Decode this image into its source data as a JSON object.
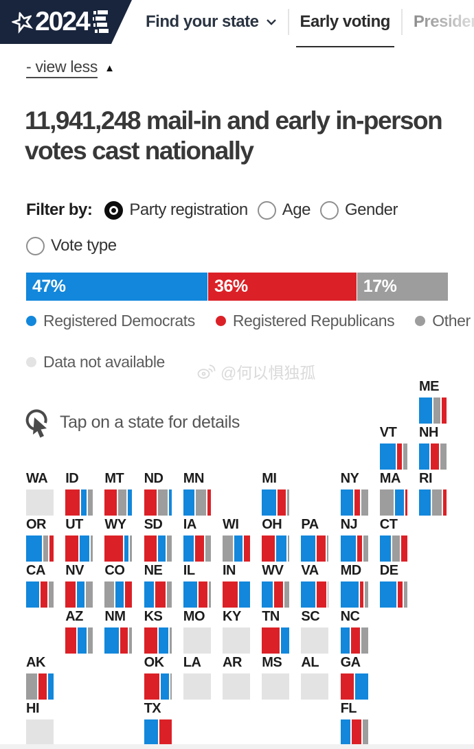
{
  "colors": {
    "dem": "#1287db",
    "rep": "#db2127",
    "oth": "#9d9d9d",
    "na": "#e3e3e3",
    "navy": "#19253c"
  },
  "header": {
    "logo_year": "2024",
    "nav": {
      "items": [
        {
          "label": "Find your state",
          "active": false
        },
        {
          "label": "Early voting",
          "active": true
        },
        {
          "label": "Presiden",
          "active": false
        }
      ]
    }
  },
  "view_less": {
    "label": "- view less",
    "arrow": "▲"
  },
  "headline": "11,941,248 mail-in and early in-person votes cast nationally",
  "filter": {
    "label": "Filter by:",
    "options": [
      {
        "label": "Party registration",
        "selected": true
      },
      {
        "label": "Age",
        "selected": false
      },
      {
        "label": "Gender",
        "selected": false
      },
      {
        "label": "Vote type",
        "selected": false
      }
    ]
  },
  "legend": {
    "items": [
      {
        "label": "Registered Democrats",
        "key": "dem"
      },
      {
        "label": "Registered Republicans",
        "key": "rep"
      },
      {
        "label": "Other",
        "key": "oth"
      },
      {
        "label": "Data not available",
        "key": "na"
      }
    ]
  },
  "watermark": "@何以惧独孤",
  "tap_hint": "Tap on a state for details",
  "chart_data": [
    {
      "type": "bar",
      "layout": "horizontal-stacked",
      "title": "11,941,248 mail-in and early in-person votes cast nationally",
      "categories": [
        "Registered Democrats",
        "Registered Republicans",
        "Other"
      ],
      "values": [
        47,
        36,
        17
      ],
      "unit": "%",
      "labels": [
        "47%",
        "36%",
        "17%"
      ],
      "color_keys": [
        "dem",
        "rep",
        "oth"
      ]
    },
    {
      "type": "cartogram-bar",
      "description": "State tile grid; each tile is a mini bar chart of early-vote share by party registration (widths are relative shares). 'na' = data not available.",
      "states": [
        {
          "label": "ME",
          "col": 11,
          "row": 1,
          "bars": [
            [
              "dem",
              52
            ],
            [
              "oth",
              29
            ],
            [
              "rep",
              19
            ]
          ]
        },
        {
          "label": "VT",
          "col": 10,
          "row": 2,
          "bars": [
            [
              "dem",
              64
            ],
            [
              "rep",
              21
            ],
            [
              "oth",
              15
            ]
          ]
        },
        {
          "label": "NH",
          "col": 11,
          "row": 2,
          "bars": [
            [
              "dem",
              43
            ],
            [
              "rep",
              31
            ],
            [
              "oth",
              26
            ]
          ]
        },
        {
          "label": "WA",
          "col": 1,
          "row": 3,
          "bars": [
            [
              "na",
              100
            ]
          ]
        },
        {
          "label": "ID",
          "col": 2,
          "row": 3,
          "bars": [
            [
              "rep",
              58
            ],
            [
              "dem",
              21
            ],
            [
              "oth",
              21
            ]
          ]
        },
        {
          "label": "MT",
          "col": 3,
          "row": 3,
          "bars": [
            [
              "rep",
              49
            ],
            [
              "oth",
              32
            ],
            [
              "dem",
              19
            ]
          ]
        },
        {
          "label": "ND",
          "col": 4,
          "row": 3,
          "bars": [
            [
              "rep",
              50
            ],
            [
              "oth",
              39
            ],
            [
              "dem",
              11
            ]
          ]
        },
        {
          "label": "MN",
          "col": 5,
          "row": 3,
          "bars": [
            [
              "dem",
              46
            ],
            [
              "oth",
              40
            ],
            [
              "rep",
              14
            ]
          ]
        },
        {
          "label": "MI",
          "col": 7,
          "row": 3,
          "bars": [
            [
              "dem",
              58
            ],
            [
              "rep",
              32
            ],
            [
              "oth",
              10
            ]
          ]
        },
        {
          "label": "NY",
          "col": 9,
          "row": 3,
          "bars": [
            [
              "dem",
              50
            ],
            [
              "rep",
              22
            ],
            [
              "oth",
              28
            ]
          ]
        },
        {
          "label": "MA",
          "col": 10,
          "row": 3,
          "bars": [
            [
              "oth",
              55
            ],
            [
              "dem",
              37
            ],
            [
              "rep",
              8
            ]
          ]
        },
        {
          "label": "RI",
          "col": 11,
          "row": 3,
          "bars": [
            [
              "dem",
              48
            ],
            [
              "oth",
              38
            ],
            [
              "rep",
              14
            ]
          ]
        },
        {
          "label": "OR",
          "col": 1,
          "row": 4,
          "bars": [
            [
              "dem",
              63
            ],
            [
              "oth",
              19
            ],
            [
              "rep",
              18
            ]
          ]
        },
        {
          "label": "UT",
          "col": 2,
          "row": 4,
          "bars": [
            [
              "rep",
              53
            ],
            [
              "dem",
              37
            ],
            [
              "oth",
              10
            ]
          ]
        },
        {
          "label": "WY",
          "col": 3,
          "row": 4,
          "bars": [
            [
              "rep",
              73
            ],
            [
              "dem",
              17
            ],
            [
              "oth",
              10
            ]
          ]
        },
        {
          "label": "SD",
          "col": 4,
          "row": 4,
          "bars": [
            [
              "rep",
              52
            ],
            [
              "dem",
              29
            ],
            [
              "oth",
              19
            ]
          ]
        },
        {
          "label": "IA",
          "col": 5,
          "row": 4,
          "bars": [
            [
              "dem",
              42
            ],
            [
              "rep",
              37
            ],
            [
              "oth",
              21
            ]
          ]
        },
        {
          "label": "WI",
          "col": 6,
          "row": 4,
          "bars": [
            [
              "oth",
              42
            ],
            [
              "dem",
              33
            ],
            [
              "rep",
              25
            ]
          ]
        },
        {
          "label": "OH",
          "col": 7,
          "row": 4,
          "bars": [
            [
              "rep",
              52
            ],
            [
              "dem",
              42
            ],
            [
              "oth",
              6
            ]
          ]
        },
        {
          "label": "PA",
          "col": 8,
          "row": 4,
          "bars": [
            [
              "dem",
              58
            ],
            [
              "rep",
              35
            ],
            [
              "oth",
              7
            ]
          ]
        },
        {
          "label": "NJ",
          "col": 9,
          "row": 4,
          "bars": [
            [
              "dem",
              62
            ],
            [
              "rep",
              19
            ],
            [
              "oth",
              19
            ]
          ]
        },
        {
          "label": "CT",
          "col": 10,
          "row": 4,
          "bars": [
            [
              "dem",
              44
            ],
            [
              "oth",
              32
            ],
            [
              "rep",
              24
            ]
          ]
        },
        {
          "label": "CA",
          "col": 1,
          "row": 5,
          "bars": [
            [
              "dem",
              53
            ],
            [
              "rep",
              27
            ],
            [
              "oth",
              20
            ]
          ]
        },
        {
          "label": "NV",
          "col": 2,
          "row": 5,
          "bars": [
            [
              "rep",
              41
            ],
            [
              "dem",
              30
            ],
            [
              "oth",
              29
            ]
          ]
        },
        {
          "label": "CO",
          "col": 3,
          "row": 5,
          "bars": [
            [
              "oth",
              37
            ],
            [
              "dem",
              35
            ],
            [
              "rep",
              28
            ]
          ]
        },
        {
          "label": "NE",
          "col": 4,
          "row": 5,
          "bars": [
            [
              "dem",
              41
            ],
            [
              "rep",
              41
            ],
            [
              "oth",
              18
            ]
          ]
        },
        {
          "label": "IL",
          "col": 5,
          "row": 5,
          "bars": [
            [
              "dem",
              56
            ],
            [
              "rep",
              37
            ],
            [
              "oth",
              7
            ]
          ]
        },
        {
          "label": "IN",
          "col": 6,
          "row": 5,
          "bars": [
            [
              "rep",
              57
            ],
            [
              "dem",
              43
            ]
          ]
        },
        {
          "label": "WV",
          "col": 7,
          "row": 5,
          "bars": [
            [
              "dem",
              43
            ],
            [
              "rep",
              36
            ],
            [
              "oth",
              21
            ]
          ]
        },
        {
          "label": "VA",
          "col": 8,
          "row": 5,
          "bars": [
            [
              "dem",
              57
            ],
            [
              "rep",
              38
            ],
            [
              "oth",
              5
            ]
          ]
        },
        {
          "label": "MD",
          "col": 9,
          "row": 5,
          "bars": [
            [
              "dem",
              72
            ],
            [
              "rep",
              14
            ],
            [
              "oth",
              14
            ]
          ]
        },
        {
          "label": "DE",
          "col": 10,
          "row": 5,
          "bars": [
            [
              "dem",
              68
            ],
            [
              "rep",
              18
            ],
            [
              "oth",
              14
            ]
          ]
        },
        {
          "label": "AZ",
          "col": 2,
          "row": 6,
          "bars": [
            [
              "rep",
              44
            ],
            [
              "dem",
              37
            ],
            [
              "oth",
              19
            ]
          ]
        },
        {
          "label": "NM",
          "col": 3,
          "row": 6,
          "bars": [
            [
              "dem",
              56
            ],
            [
              "rep",
              32
            ],
            [
              "oth",
              12
            ]
          ]
        },
        {
          "label": "KS",
          "col": 4,
          "row": 6,
          "bars": [
            [
              "rep",
              54
            ],
            [
              "dem",
              38
            ],
            [
              "oth",
              8
            ]
          ]
        },
        {
          "label": "MO",
          "col": 5,
          "row": 6,
          "bars": [
            [
              "na",
              100
            ]
          ]
        },
        {
          "label": "KY",
          "col": 6,
          "row": 6,
          "bars": [
            [
              "na",
              100
            ]
          ]
        },
        {
          "label": "TN",
          "col": 7,
          "row": 6,
          "bars": [
            [
              "rep",
              69
            ],
            [
              "dem",
              31
            ]
          ]
        },
        {
          "label": "SC",
          "col": 8,
          "row": 6,
          "bars": [
            [
              "na",
              100
            ]
          ]
        },
        {
          "label": "NC",
          "col": 9,
          "row": 6,
          "bars": [
            [
              "dem",
              36
            ],
            [
              "rep",
              36
            ],
            [
              "oth",
              28
            ]
          ]
        },
        {
          "label": "AK",
          "col": 1,
          "row": 7,
          "bars": [
            [
              "oth",
              45
            ],
            [
              "rep",
              32
            ],
            [
              "dem",
              23
            ]
          ]
        },
        {
          "label": "OK",
          "col": 4,
          "row": 7,
          "bars": [
            [
              "rep",
              61
            ],
            [
              "dem",
              35
            ],
            [
              "oth",
              4
            ]
          ]
        },
        {
          "label": "LA",
          "col": 5,
          "row": 7,
          "bars": [
            [
              "na",
              100
            ]
          ]
        },
        {
          "label": "AR",
          "col": 6,
          "row": 7,
          "bars": [
            [
              "na",
              100
            ]
          ]
        },
        {
          "label": "MS",
          "col": 7,
          "row": 7,
          "bars": [
            [
              "na",
              100
            ]
          ]
        },
        {
          "label": "AL",
          "col": 8,
          "row": 7,
          "bars": [
            [
              "na",
              100
            ]
          ]
        },
        {
          "label": "GA",
          "col": 9,
          "row": 7,
          "bars": [
            [
              "rep",
              50
            ],
            [
              "dem",
              50
            ]
          ]
        },
        {
          "label": "HI",
          "col": 1,
          "row": 8,
          "bars": [
            [
              "na",
              100
            ]
          ]
        },
        {
          "label": "TX",
          "col": 4,
          "row": 8,
          "bars": [
            [
              "dem",
              53
            ],
            [
              "rep",
              47
            ]
          ]
        },
        {
          "label": "FL",
          "col": 9,
          "row": 8,
          "bars": [
            [
              "dem",
              40
            ],
            [
              "rep",
              40
            ],
            [
              "oth",
              20
            ]
          ]
        }
      ]
    }
  ]
}
